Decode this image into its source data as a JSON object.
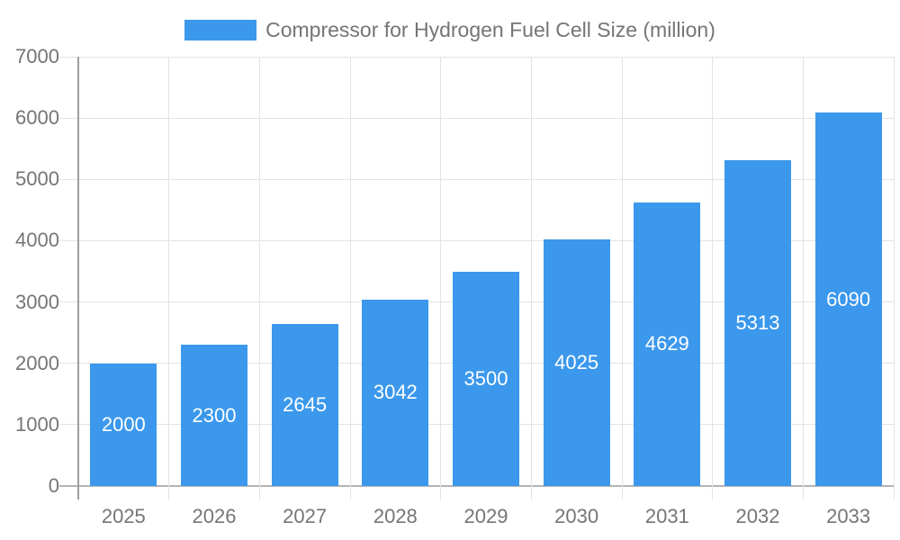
{
  "legend": {
    "label": "Compressor for Hydrogen Fuel Cell Size (million)"
  },
  "chart_data": {
    "type": "bar",
    "title": "Compressor for Hydrogen Fuel Cell Size (million)",
    "categories": [
      "2025",
      "2026",
      "2027",
      "2028",
      "2029",
      "2030",
      "2031",
      "2032",
      "2033"
    ],
    "values": [
      2000,
      2300,
      2645,
      3042,
      3500,
      4025,
      4629,
      5313,
      6090
    ],
    "xlabel": "",
    "ylabel": "",
    "ylim": [
      0,
      7000
    ],
    "yticks": [
      0,
      1000,
      2000,
      3000,
      4000,
      5000,
      6000,
      7000
    ],
    "grid": true,
    "legend_position": "top",
    "value_labels_position": "inside-center"
  },
  "style": {
    "bar_color": "#3B98EC",
    "grid_color": "#E3E3E3",
    "axis_color": "#9E9E9E",
    "baseline_color": "#B5B5B5",
    "tick_label_color": "#757575",
    "value_label_color": "#FFFFFF",
    "background": "#FFFFFF"
  }
}
